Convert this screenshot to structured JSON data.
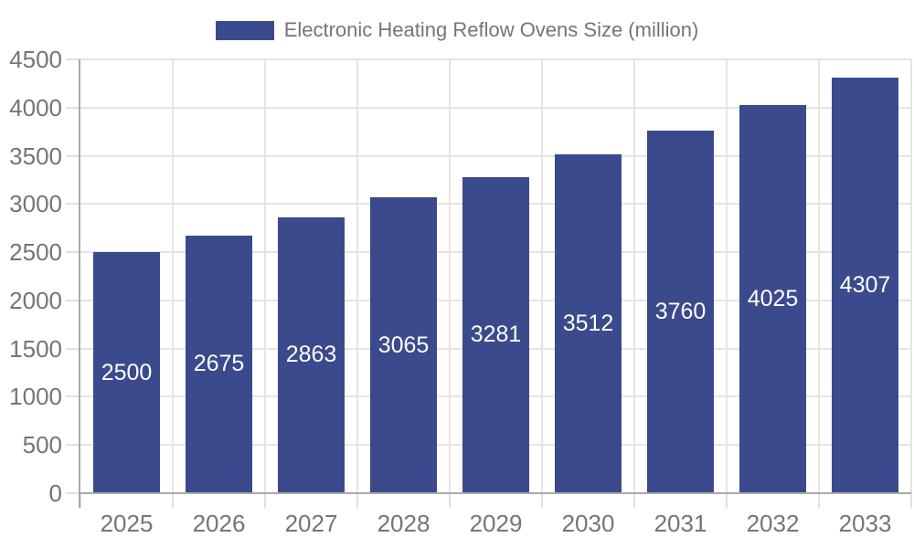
{
  "legend": {
    "position": "top",
    "label": "Electronic Heating Reflow Ovens Size (million)"
  },
  "chart_data": {
    "type": "bar",
    "title": "Electronic Heating Reflow Ovens Size (million)",
    "categories": [
      "2025",
      "2026",
      "2027",
      "2028",
      "2029",
      "2030",
      "2031",
      "2032",
      "2033"
    ],
    "values": [
      2500,
      2675,
      2863,
      3065,
      3281,
      3512,
      3760,
      4025,
      4307
    ],
    "value_labels": [
      "2500",
      "2675",
      "2863",
      "3065",
      "3281",
      "3512",
      "3760",
      "4025",
      "4307"
    ],
    "xlabel": "",
    "ylabel": "",
    "ylim": [
      0,
      4500
    ],
    "yticks": [
      0,
      500,
      1000,
      1500,
      2000,
      2500,
      3000,
      3500,
      4000,
      4500
    ],
    "grid": true,
    "legend_position": "top-center",
    "value_label_position": "inside-center"
  },
  "colors": {
    "bar": "#3A4A8C",
    "value_label": "#ffffff",
    "axis_text": "#757575",
    "grid": "#e4e4e4",
    "tick": "#e0e0e0",
    "spine": "#a9a9a9",
    "background": "#ffffff"
  }
}
